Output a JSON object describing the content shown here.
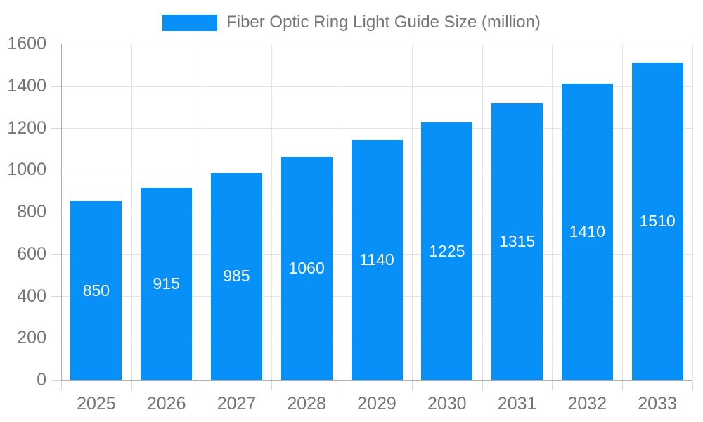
{
  "legend": {
    "label": "Fiber Optic Ring Light Guide Size (million)"
  },
  "chart_data": {
    "type": "bar",
    "title": "Fiber Optic Ring Light Guide Size (million)",
    "categories": [
      "2025",
      "2026",
      "2027",
      "2028",
      "2029",
      "2030",
      "2031",
      "2032",
      "2033"
    ],
    "values": [
      850,
      915,
      985,
      1060,
      1140,
      1225,
      1315,
      1410,
      1510
    ],
    "xlabel": "",
    "ylabel": "",
    "ylim": [
      0,
      1600
    ],
    "yticks": [
      0,
      200,
      400,
      600,
      800,
      1000,
      1200,
      1400,
      1600
    ],
    "legend_position": "top",
    "grid": true,
    "bar_color": "#0690F8",
    "bar_label_color": "#ffffff",
    "axis_text_color": "#757575",
    "grid_color": "#e4e4e4",
    "axis_line_color": "#adadad"
  }
}
